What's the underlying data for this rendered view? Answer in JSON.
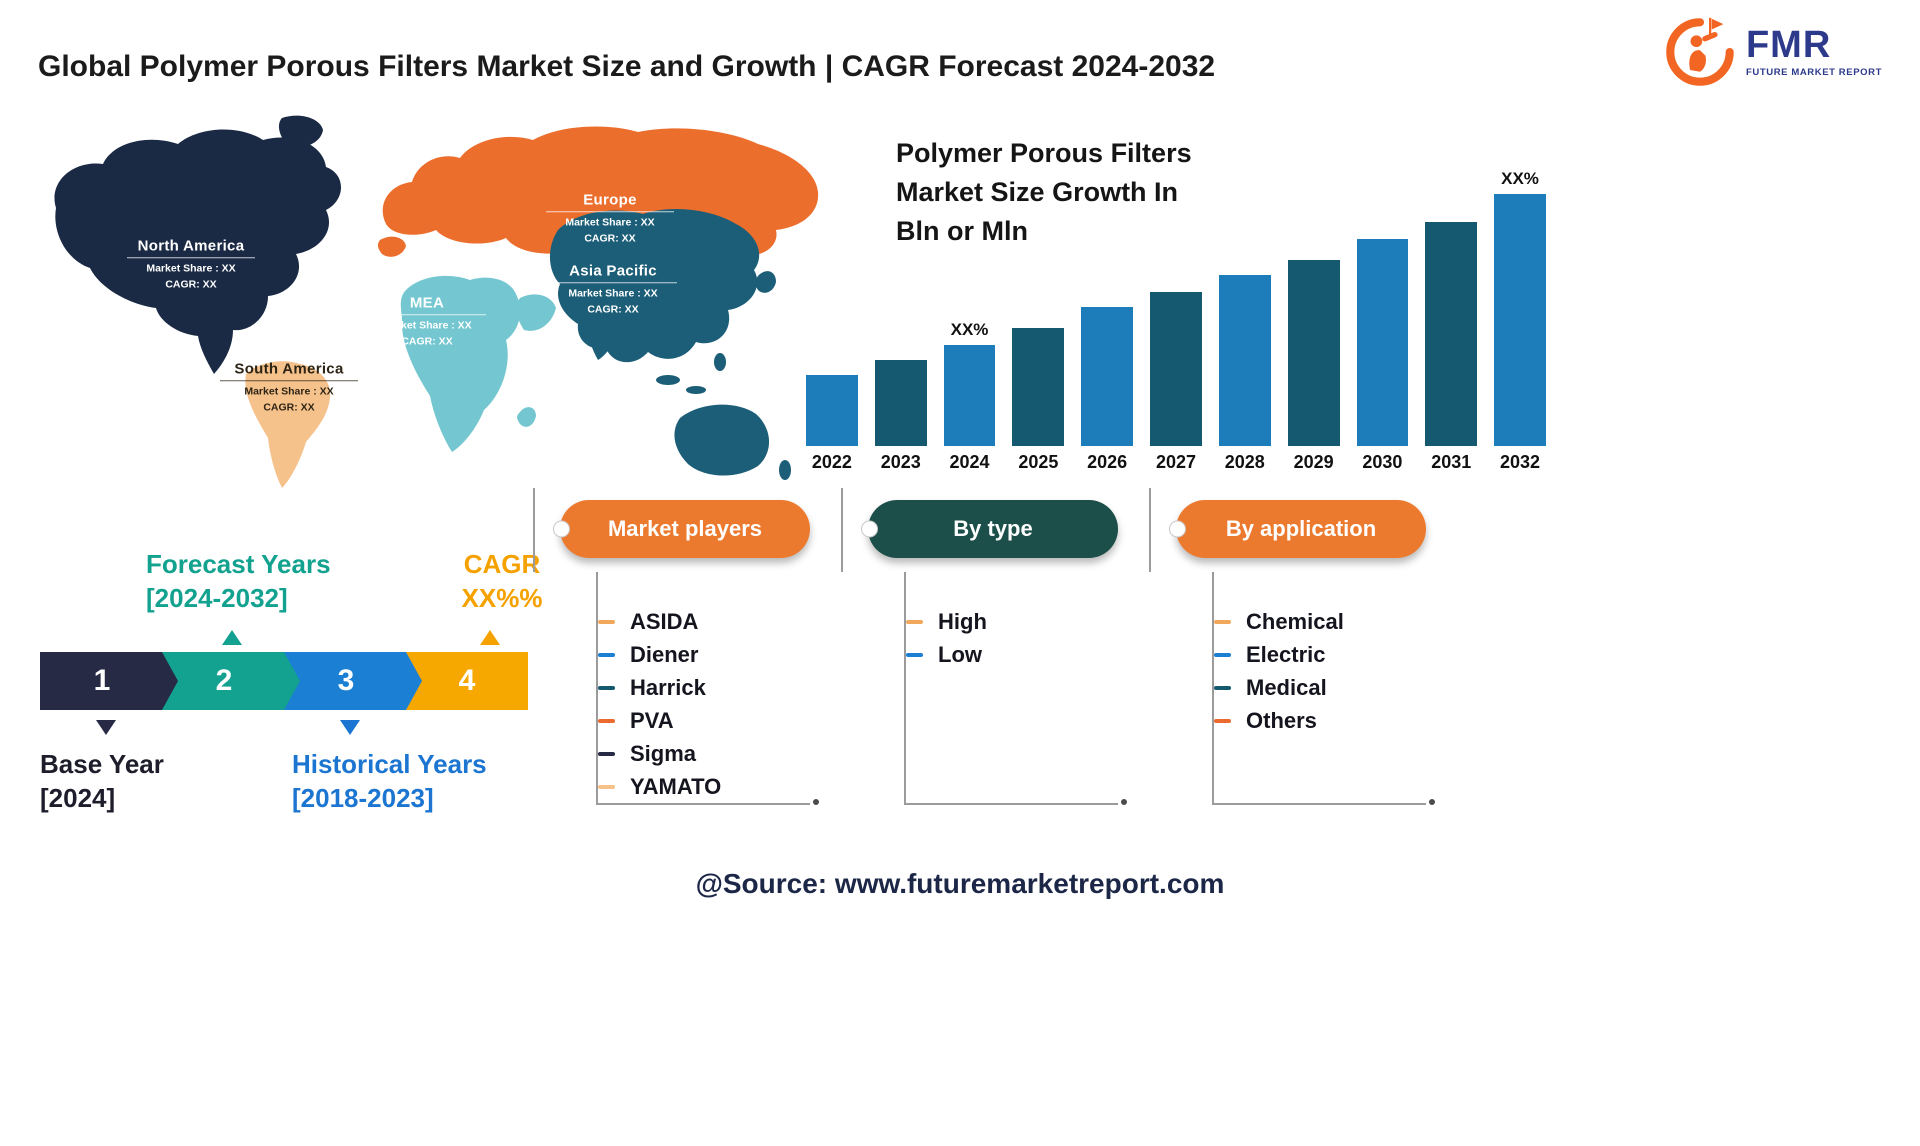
{
  "header": {
    "title": "Global Polymer Porous Filters Market Size and Growth | CAGR Forecast 2024-2032",
    "logo": {
      "text": "FMR",
      "subtitle": "FUTURE MARKET REPORT",
      "mark_color": "#f26522",
      "text_color": "#2d3a8c"
    }
  },
  "map": {
    "colors": {
      "north-america": "#1b2a44",
      "south-america": "#f6c28b",
      "europe": "#ec6e2d",
      "mea": "#74c7d0",
      "asia-pacific": "#1c5e78"
    },
    "regions": [
      {
        "name": "North America",
        "share": "Market Share : XX",
        "cagr": "CAGR: XX"
      },
      {
        "name": "South America",
        "share": "Market Share : XX",
        "cagr": "CAGR: XX"
      },
      {
        "name": "Europe",
        "share": "Market Share : XX",
        "cagr": "CAGR: XX"
      },
      {
        "name": "MEA",
        "share": "Market Share : XX",
        "cagr": "CAGR: XX"
      },
      {
        "name": "Asia Pacific",
        "share": "Market Share : XX",
        "cagr": "CAGR: XX"
      }
    ]
  },
  "chart_data": {
    "type": "bar",
    "title": "Polymer Porous Filters Market Size Growth In Bln or Mln",
    "title_lines": [
      "Polymer Porous Filters",
      "Market Size Growth In",
      "Bln or Mln"
    ],
    "categories": [
      "2022",
      "2023",
      "2024",
      "2025",
      "2026",
      "2027",
      "2028",
      "2029",
      "2030",
      "2031",
      "2032"
    ],
    "values": [
      28,
      34,
      40,
      47,
      55,
      61,
      68,
      74,
      82,
      89,
      100
    ],
    "value_note": "relative heights; actual values shown as XX on chart",
    "annotations": [
      {
        "category": "2024",
        "label": "XX%"
      },
      {
        "category": "2032",
        "label": "XX%"
      }
    ],
    "bar_colors_alternate": [
      "#1d7cba",
      "#14596f"
    ],
    "xlabel": "",
    "ylabel": "",
    "grid": false,
    "legend": false
  },
  "timeline": {
    "segments": [
      {
        "number": "1",
        "color": "#262a44"
      },
      {
        "number": "2",
        "color": "#12a28f"
      },
      {
        "number": "3",
        "color": "#1b7fd4"
      },
      {
        "number": "4",
        "color": "#f7a800"
      }
    ],
    "forecast_label": "Forecast Years",
    "forecast_range": "[2024-2032]",
    "forecast_color": "#12a28f",
    "cagr_label": "CAGR",
    "cagr_value": "XX%%",
    "cagr_color": "#f5a200",
    "base_label": "Base Year",
    "base_range": "[2024]",
    "historical_label": "Historical Years",
    "historical_range": "[2018-2023]",
    "historical_color": "#1b75d1"
  },
  "panels": [
    {
      "title": "Market players",
      "color": "#ec7a2e",
      "items": [
        {
          "label": "ASIDA",
          "tick": "#f2a85c"
        },
        {
          "label": "Diener",
          "tick": "#1b7fd4"
        },
        {
          "label": "Harrick",
          "tick": "#14596f"
        },
        {
          "label": "PVA",
          "tick": "#ec6a2e"
        },
        {
          "label": "Sigma",
          "tick": "#262a44"
        },
        {
          "label": "YAMATO",
          "tick": "#f6c289"
        }
      ]
    },
    {
      "title": "By type",
      "color": "#1c4f49",
      "items": [
        {
          "label": "High",
          "tick": "#f2a85c"
        },
        {
          "label": "Low",
          "tick": "#1b7fd4"
        }
      ]
    },
    {
      "title": "By application",
      "color": "#ec7a2e",
      "items": [
        {
          "label": "Chemical",
          "tick": "#f2a85c"
        },
        {
          "label": "Electric",
          "tick": "#1b7fd4"
        },
        {
          "label": "Medical",
          "tick": "#14596f"
        },
        {
          "label": "Others",
          "tick": "#ec6a2e"
        }
      ]
    }
  ],
  "footer": {
    "source": "@Source: www.futuremarketreport.com"
  }
}
